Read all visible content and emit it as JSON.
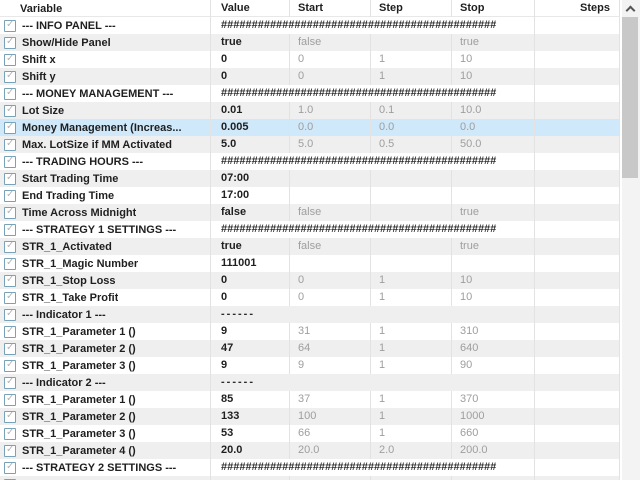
{
  "table": {
    "columns": [
      {
        "id": "variable",
        "label": "Variable"
      },
      {
        "id": "value",
        "label": "Value"
      },
      {
        "id": "start",
        "label": "Start"
      },
      {
        "id": "step",
        "label": "Step"
      },
      {
        "id": "stop",
        "label": "Stop"
      },
      {
        "id": "steps",
        "label": "Steps"
      }
    ],
    "check_glyph": "✓",
    "rows": [
      {
        "type": "section",
        "checked": true,
        "selected": false,
        "name": "--- INFO PANEL ---",
        "value": "#############################################",
        "start": "",
        "step": "",
        "stop": "",
        "steps": ""
      },
      {
        "type": "param",
        "checked": true,
        "selected": false,
        "name": "Show/Hide Panel",
        "value": "true",
        "start": "false",
        "step": "",
        "stop": "true",
        "steps": ""
      },
      {
        "type": "param",
        "checked": true,
        "selected": false,
        "name": "Shift x",
        "value": "0",
        "start": "0",
        "step": "1",
        "stop": "10",
        "steps": ""
      },
      {
        "type": "param",
        "checked": true,
        "selected": false,
        "name": "Shift y",
        "value": "0",
        "start": "0",
        "step": "1",
        "stop": "10",
        "steps": ""
      },
      {
        "type": "section",
        "checked": true,
        "selected": false,
        "name": "--- MONEY MANAGEMENT ---",
        "value": "#############################################",
        "start": "",
        "step": "",
        "stop": "",
        "steps": ""
      },
      {
        "type": "param",
        "checked": true,
        "selected": false,
        "name": "Lot Size",
        "value": "0.01",
        "start": "1.0",
        "step": "0.1",
        "stop": "10.0",
        "steps": ""
      },
      {
        "type": "param",
        "checked": true,
        "selected": true,
        "name": "Money Management (Increas...",
        "value": "0.005",
        "start": "0.0",
        "step": "0.0",
        "stop": "0.0",
        "steps": ""
      },
      {
        "type": "param",
        "checked": true,
        "selected": false,
        "name": "Max. LotSize if MM Activated",
        "value": "5.0",
        "start": "5.0",
        "step": "0.5",
        "stop": "50.0",
        "steps": ""
      },
      {
        "type": "section",
        "checked": true,
        "selected": false,
        "name": "--- TRADING HOURS ---",
        "value": "#############################################",
        "start": "",
        "step": "",
        "stop": "",
        "steps": ""
      },
      {
        "type": "param",
        "checked": true,
        "selected": false,
        "name": "Start Trading Time",
        "value": "07:00",
        "start": "",
        "step": "",
        "stop": "",
        "steps": ""
      },
      {
        "type": "param",
        "checked": true,
        "selected": false,
        "name": "End Trading Time",
        "value": "17:00",
        "start": "",
        "step": "",
        "stop": "",
        "steps": ""
      },
      {
        "type": "param",
        "checked": true,
        "selected": false,
        "name": "Time Across Midnight",
        "value": "false",
        "start": "false",
        "step": "",
        "stop": "true",
        "steps": ""
      },
      {
        "type": "section",
        "checked": true,
        "selected": false,
        "name": "--- STRATEGY 1 SETTINGS ---",
        "value": "#############################################",
        "start": "",
        "step": "",
        "stop": "",
        "steps": ""
      },
      {
        "type": "param",
        "checked": true,
        "selected": false,
        "name": "STR_1_Activated",
        "value": "true",
        "start": "false",
        "step": "",
        "stop": "true",
        "steps": ""
      },
      {
        "type": "param",
        "checked": true,
        "selected": false,
        "name": "STR_1_Magic Number",
        "value": "111001",
        "start": "",
        "step": "",
        "stop": "",
        "steps": ""
      },
      {
        "type": "param",
        "checked": true,
        "selected": false,
        "name": "STR_1_Stop Loss",
        "value": "0",
        "start": "0",
        "step": "1",
        "stop": "10",
        "steps": ""
      },
      {
        "type": "param",
        "checked": true,
        "selected": false,
        "name": "STR_1_Take Profit",
        "value": "0",
        "start": "0",
        "step": "1",
        "stop": "10",
        "steps": ""
      },
      {
        "type": "section",
        "checked": true,
        "selected": false,
        "name": "--- Indicator 1 ---",
        "value": "------",
        "start": "",
        "step": "",
        "stop": "",
        "steps": ""
      },
      {
        "type": "param",
        "checked": true,
        "selected": false,
        "name": "STR_1_Parameter 1 ()",
        "value": "9",
        "start": "31",
        "step": "1",
        "stop": "310",
        "steps": ""
      },
      {
        "type": "param",
        "checked": true,
        "selected": false,
        "name": "STR_1_Parameter 2 ()",
        "value": "47",
        "start": "64",
        "step": "1",
        "stop": "640",
        "steps": ""
      },
      {
        "type": "param",
        "checked": true,
        "selected": false,
        "name": "STR_1_Parameter 3 ()",
        "value": "9",
        "start": "9",
        "step": "1",
        "stop": "90",
        "steps": ""
      },
      {
        "type": "section",
        "checked": true,
        "selected": false,
        "name": "--- Indicator 2 ---",
        "value": "------",
        "start": "",
        "step": "",
        "stop": "",
        "steps": ""
      },
      {
        "type": "param",
        "checked": true,
        "selected": false,
        "name": "STR_1_Parameter 1 ()",
        "value": "85",
        "start": "37",
        "step": "1",
        "stop": "370",
        "steps": ""
      },
      {
        "type": "param",
        "checked": true,
        "selected": false,
        "name": "STR_1_Parameter 2 ()",
        "value": "133",
        "start": "100",
        "step": "1",
        "stop": "1000",
        "steps": ""
      },
      {
        "type": "param",
        "checked": true,
        "selected": false,
        "name": "STR_1_Parameter 3 ()",
        "value": "53",
        "start": "66",
        "step": "1",
        "stop": "660",
        "steps": ""
      },
      {
        "type": "param",
        "checked": true,
        "selected": false,
        "name": "STR_1_Parameter 4 ()",
        "value": "20.0",
        "start": "20.0",
        "step": "2.0",
        "stop": "200.0",
        "steps": ""
      },
      {
        "type": "section",
        "checked": true,
        "selected": false,
        "name": "--- STRATEGY 2 SETTINGS ---",
        "value": "#############################################",
        "start": "",
        "step": "",
        "stop": "",
        "steps": ""
      },
      {
        "type": "param",
        "checked": true,
        "selected": false,
        "name": "",
        "value": "",
        "start": "",
        "step": "",
        "stop": "",
        "steps": ""
      }
    ]
  },
  "scrollbar": {
    "up_icon": "chevron-up"
  },
  "colors": {
    "selected_row": "#cfe8fa",
    "stripe_row": "#efefef",
    "grid_border": "#e2e2e2",
    "dim_text": "#9e9e9e",
    "text": "#1f1f1f",
    "checkbox_border": "#78a2b8",
    "check_mark": "#b4b4b4",
    "scrollbar_thumb": "#c8c8c8",
    "scrollbar_track": "#f3f3f3"
  }
}
